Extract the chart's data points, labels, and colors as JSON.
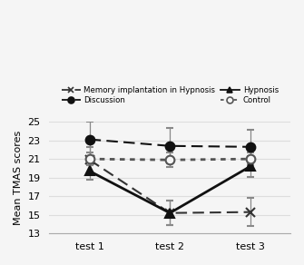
{
  "x_labels": [
    "test 1",
    "test 2",
    "test 3"
  ],
  "x_values": [
    1,
    2,
    3
  ],
  "series": {
    "memory_implantation": {
      "label": "Memory implantation in Hypnosis",
      "y": [
        20.9,
        15.2,
        15.3
      ],
      "yerr": [
        1.4,
        1.3,
        1.5
      ],
      "linestyle": "dashed",
      "marker": "x",
      "color": "#333333",
      "markersize": 7,
      "linewidth": 1.5,
      "fillstyle": "none"
    },
    "discussion": {
      "label": "Discussion",
      "y": [
        23.1,
        22.4,
        22.3
      ],
      "yerr": [
        1.9,
        1.9,
        1.8
      ],
      "linestyle": "dashed",
      "marker": "o",
      "color": "#111111",
      "markersize": 7,
      "linewidth": 1.5,
      "fillstyle": "full"
    },
    "hypnosis": {
      "label": "Hypnosis",
      "y": [
        19.7,
        15.2,
        20.2
      ],
      "yerr": [
        0.9,
        1.3,
        1.1
      ],
      "linestyle": "solid",
      "marker": "^",
      "color": "#111111",
      "markersize": 7,
      "linewidth": 2.0,
      "fillstyle": "full"
    },
    "control": {
      "label": "Control",
      "y": [
        21.0,
        20.9,
        21.0
      ],
      "yerr": [
        0.7,
        0.8,
        0.7
      ],
      "linestyle": "dotted",
      "marker": "o",
      "color": "#555555",
      "markersize": 7,
      "linewidth": 2.0,
      "fillstyle": "none"
    }
  },
  "ylabel": "Mean TMAS scores",
  "ylim": [
    13,
    25
  ],
  "yticks": [
    13,
    15,
    17,
    19,
    21,
    23,
    25
  ],
  "background_color": "#f5f5f5",
  "legend_order": [
    "memory_implantation",
    "discussion",
    "hypnosis",
    "control"
  ]
}
